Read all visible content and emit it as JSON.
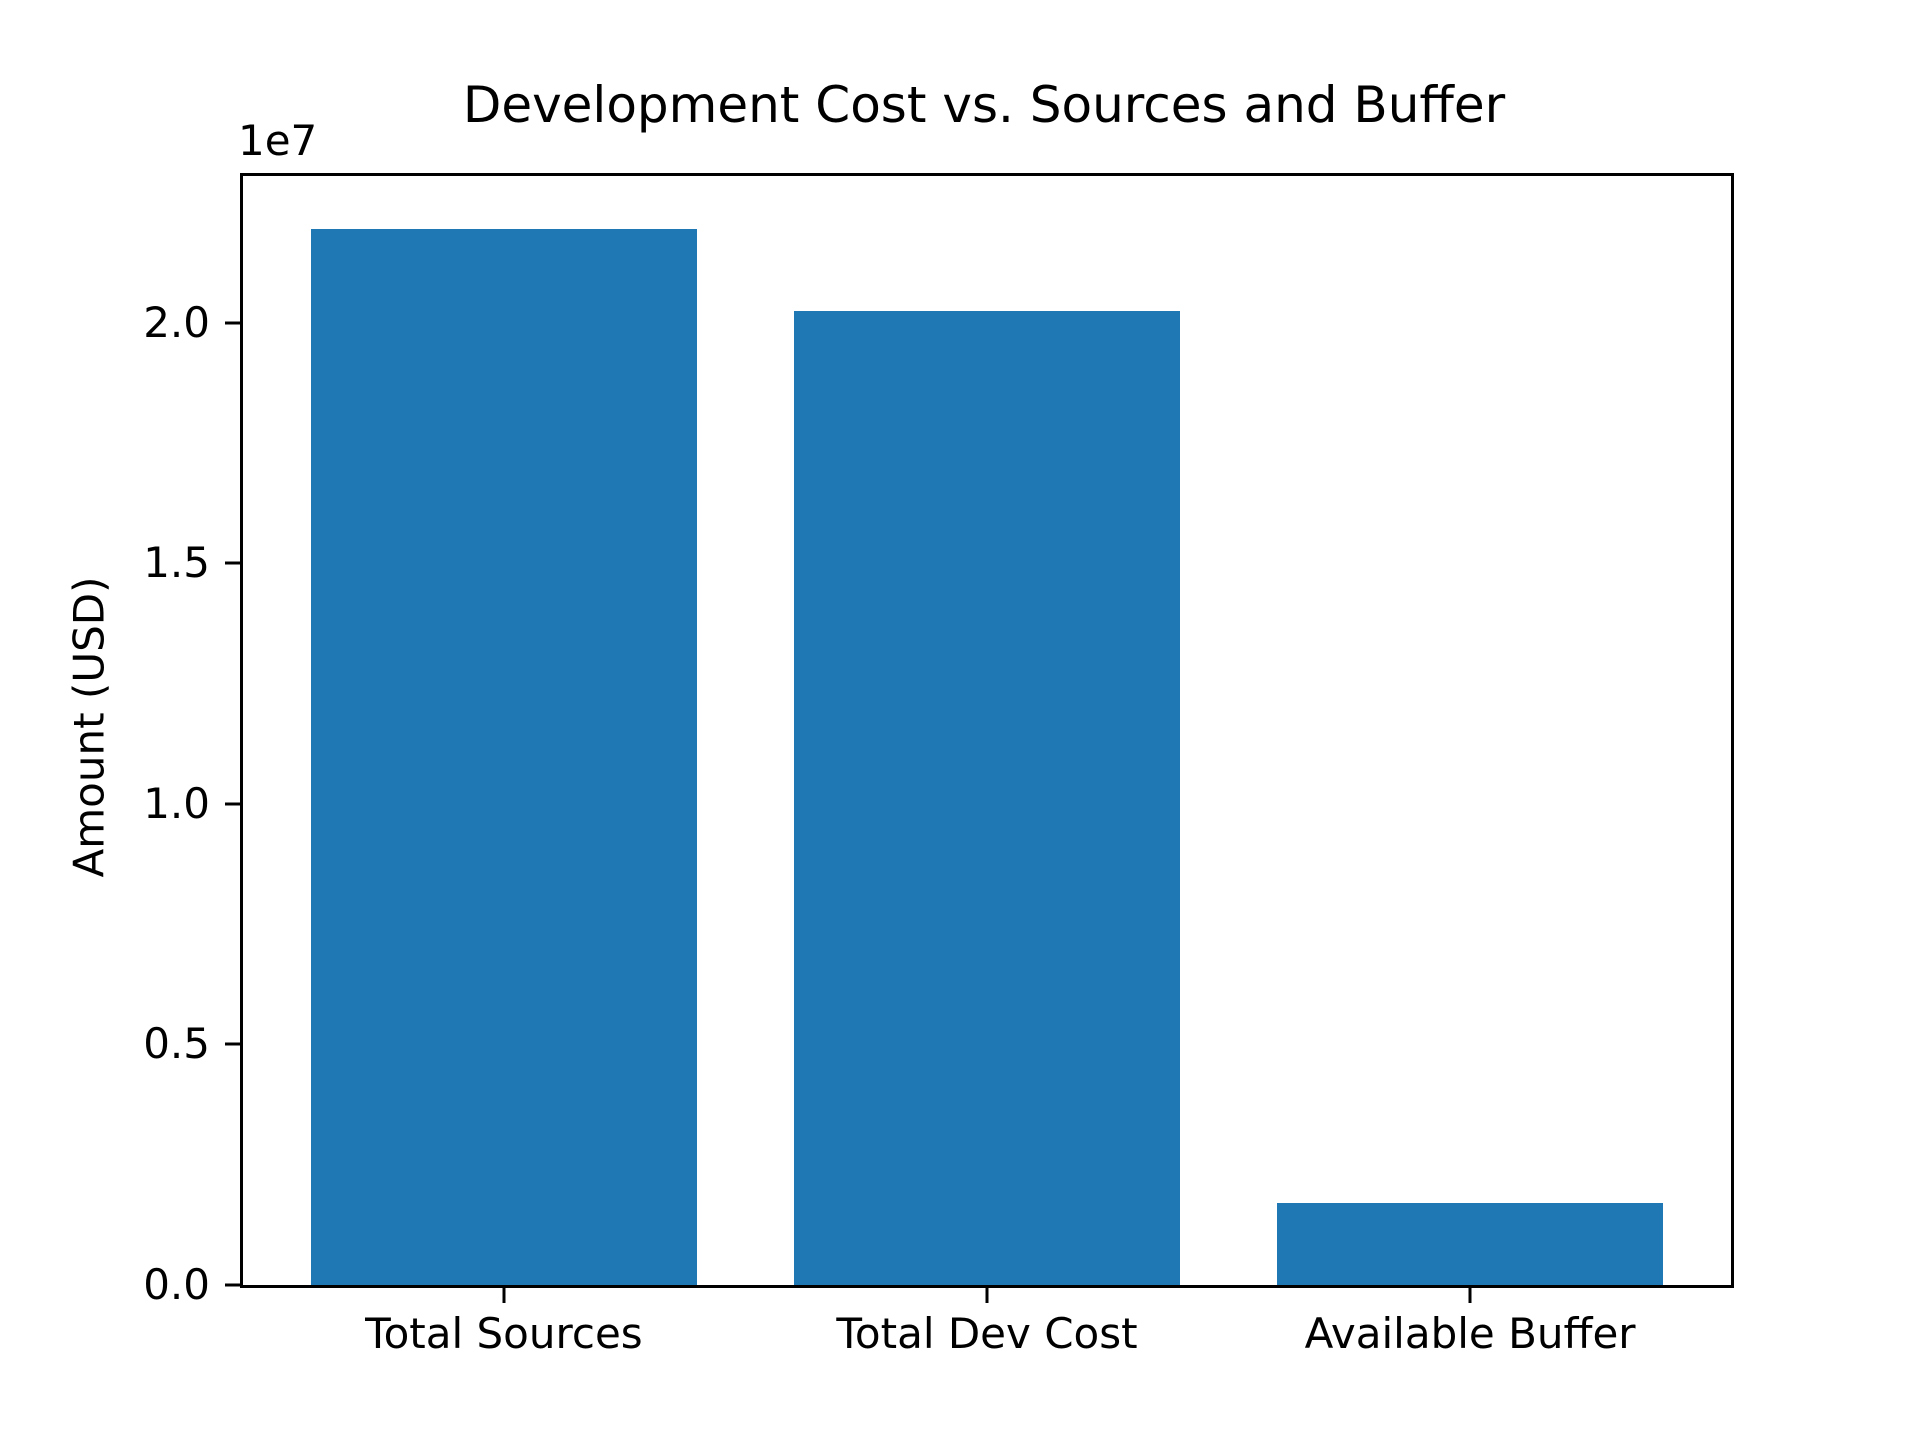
{
  "chart_data": {
    "type": "bar",
    "title": "Development Cost vs. Sources and Buffer",
    "xlabel": "",
    "ylabel": "Amount (USD)",
    "y_offset_text": "1e7",
    "categories": [
      "Total Sources",
      "Total Dev Cost",
      "Available Buffer"
    ],
    "values": [
      21950000,
      20250000,
      1700000
    ],
    "ylim": [
      0,
      23047500
    ],
    "yticks": [
      {
        "value": 0,
        "label": "0.0"
      },
      {
        "value": 5000000,
        "label": "0.5"
      },
      {
        "value": 10000000,
        "label": "1.0"
      },
      {
        "value": 15000000,
        "label": "1.5"
      },
      {
        "value": 20000000,
        "label": "2.0"
      }
    ],
    "xlim": [
      -0.54,
      2.54
    ],
    "bar_width_fraction": 0.8,
    "bar_color": "#1f77b4",
    "axis_color": "#000000",
    "background_color": "#ffffff",
    "grid": false,
    "legend": false
  }
}
